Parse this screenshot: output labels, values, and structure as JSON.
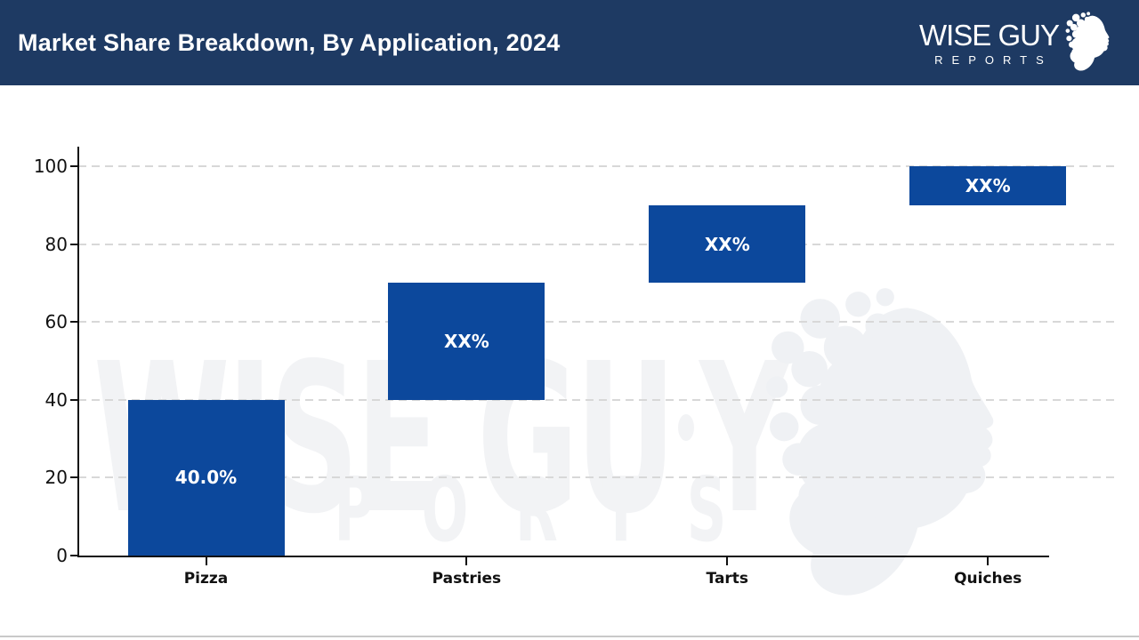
{
  "header": {
    "title": "Market Share Breakdown, By Application, 2024",
    "logo": {
      "line1": "WISE GUY",
      "line2": "REPORTS",
      "icon": "dotted-head-profile-icon"
    }
  },
  "watermark": {
    "title_part1": "WISE GU",
    "title_part2": "Y",
    "subtitle": "REPORTS",
    "icon": "dotted-head-profile-icon"
  },
  "chart_data": {
    "type": "bar",
    "subtype": "waterfall",
    "title": "Market Share Breakdown, By Application, 2024",
    "categories": [
      "Pizza",
      "Pastries",
      "Tarts",
      "Quiches"
    ],
    "segments": [
      {
        "category": "Pizza",
        "start": 0,
        "end": 40,
        "label": "40.0%"
      },
      {
        "category": "Pastries",
        "start": 40,
        "end": 70,
        "label": "XX%"
      },
      {
        "category": "Tarts",
        "start": 70,
        "end": 90,
        "label": "XX%"
      },
      {
        "category": "Quiches",
        "start": 90,
        "end": 100,
        "label": "XX%"
      }
    ],
    "yticks": [
      0,
      20,
      40,
      60,
      80,
      100
    ],
    "ylim": [
      0,
      100
    ],
    "xlabel": "",
    "ylabel": "",
    "grid": true,
    "gridstyle": "dashed",
    "legend": null
  },
  "colors": {
    "header_bg": "#1e3a63",
    "bar": "#0c489c",
    "grid": "#d8d8d8",
    "axis": "#111111",
    "watermark": "#f2f3f5",
    "title_text": "#ffffff",
    "bottom_rule": "#c9c9c9"
  }
}
